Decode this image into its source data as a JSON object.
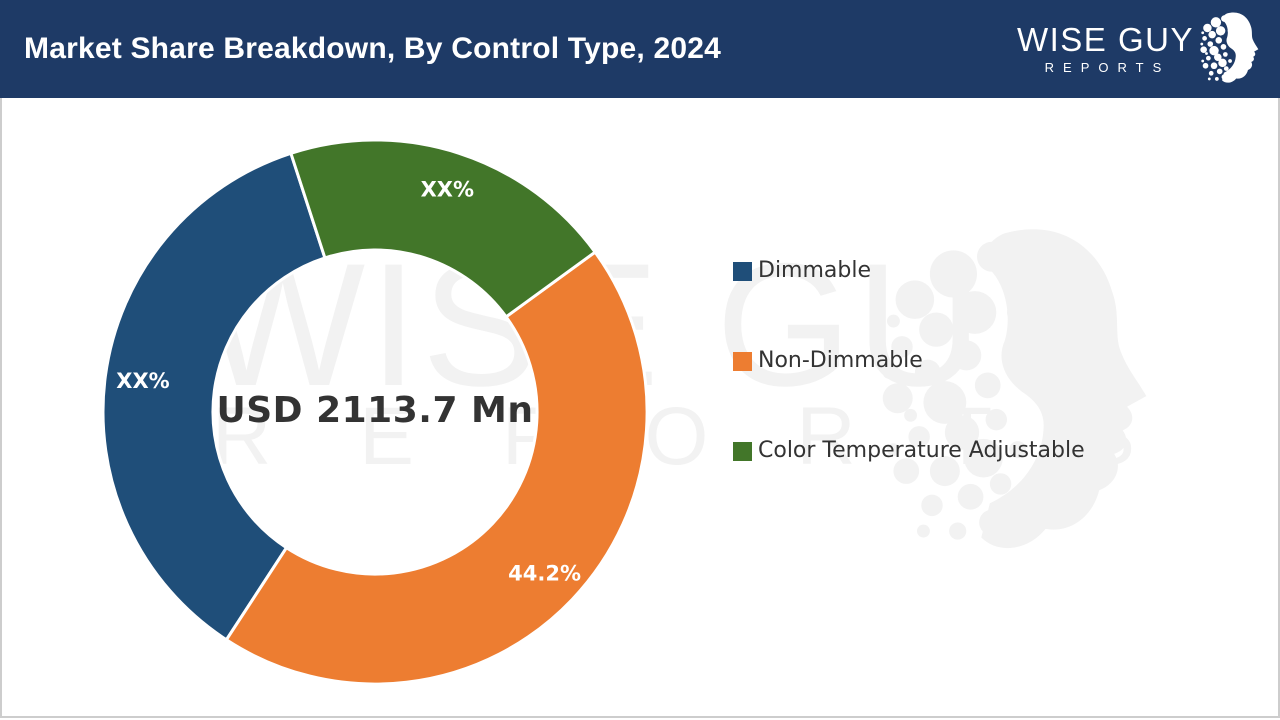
{
  "header": {
    "title": "Market Share Breakdown, By Control Type, 2024"
  },
  "brand": {
    "line1": "WISE GUY",
    "line2": "REPORTS"
  },
  "chart_data": {
    "type": "pie",
    "subtype": "donut",
    "title": "Market Share Breakdown, By Control Type, 2024",
    "center_label": "USD 2113.7 Mn",
    "start_angle_deg": 108,
    "direction": "counterclockwise",
    "legend_position": "right",
    "series": [
      {
        "name": "Dimmable",
        "share_pct": 35.8,
        "display_label": "XX%",
        "color": "#1f4e79"
      },
      {
        "name": "Non-Dimmable",
        "share_pct": 44.2,
        "display_label": "44.2%",
        "color": "#ed7d31"
      },
      {
        "name": "Color Temperature Adjustable",
        "share_pct": 20.0,
        "display_label": "XX%",
        "color": "#427629"
      }
    ]
  },
  "colors": {
    "header_bg": "#1e3a66",
    "text_dark": "#333333",
    "frame_border": "#cdcdcd",
    "watermark": "#f2f2f2",
    "segment_separator": "#ffffff"
  }
}
